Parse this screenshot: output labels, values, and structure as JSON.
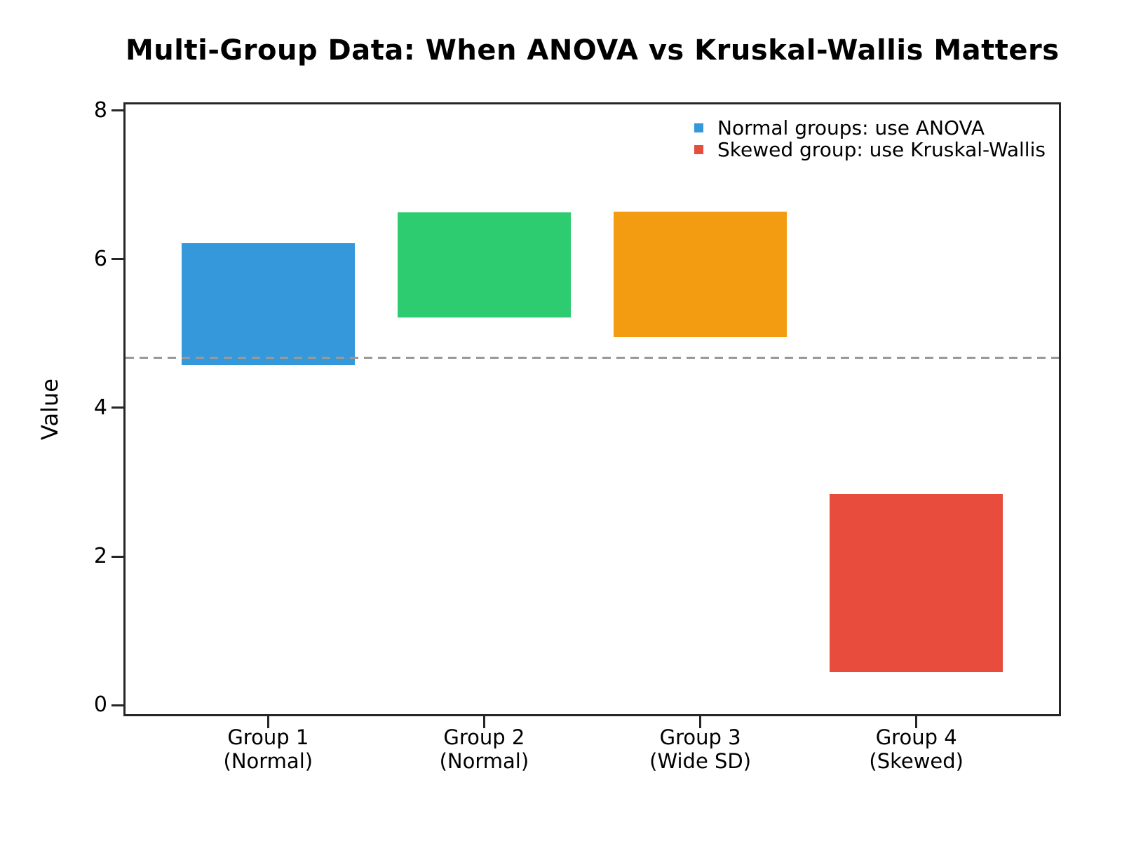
{
  "title": "Multi-Group Data: When ANOVA vs Kruskal-Wallis Matters",
  "legend": {
    "position": "upper-right",
    "items": [
      {
        "label": "Normal groups: use ANOVA",
        "color": "#3498db"
      },
      {
        "label": "Skewed group: use Kruskal-Wallis",
        "color": "#e74c3c"
      }
    ]
  },
  "chart_data": {
    "type": "bar",
    "subtype": "floating-range-bars",
    "title": "Multi-Group Data: When ANOVA vs Kruskal-Wallis Matters",
    "xlabel": "",
    "ylabel": "Value",
    "categories": [
      [
        "Group 1",
        "(Normal)"
      ],
      [
        "Group 2",
        "(Normal)"
      ],
      [
        "Group 3",
        "(Wide SD)"
      ],
      [
        "Group 4",
        "(Skewed)"
      ]
    ],
    "series": [
      {
        "name": "Group 1 (Normal)",
        "low": 4.57,
        "high": 6.21,
        "mid": 5.39,
        "color": "#3498db"
      },
      {
        "name": "Group 2 (Normal)",
        "low": 5.21,
        "high": 6.63,
        "mid": 5.92,
        "color": "#2ecc71"
      },
      {
        "name": "Group 3 (Wide SD)",
        "low": 4.95,
        "high": 6.64,
        "mid": 5.8,
        "color": "#f39c12"
      },
      {
        "name": "Group 4 (Skewed)",
        "low": 0.45,
        "high": 2.84,
        "mid": 1.65,
        "color": "#e74c3c"
      }
    ],
    "reference_line": {
      "value": 4.67,
      "style": "dashed",
      "color": "#999999"
    },
    "x_positions": [
      0,
      1,
      2,
      3
    ],
    "bar_width": 0.8,
    "xlim": [
      -0.66,
      3.66
    ],
    "ylim": [
      -0.12,
      8.08
    ],
    "yticks": [
      0,
      2,
      4,
      6,
      8
    ],
    "grid": false,
    "legend_position": "upper right",
    "spine_color": "#262626",
    "background": "#ffffff"
  }
}
